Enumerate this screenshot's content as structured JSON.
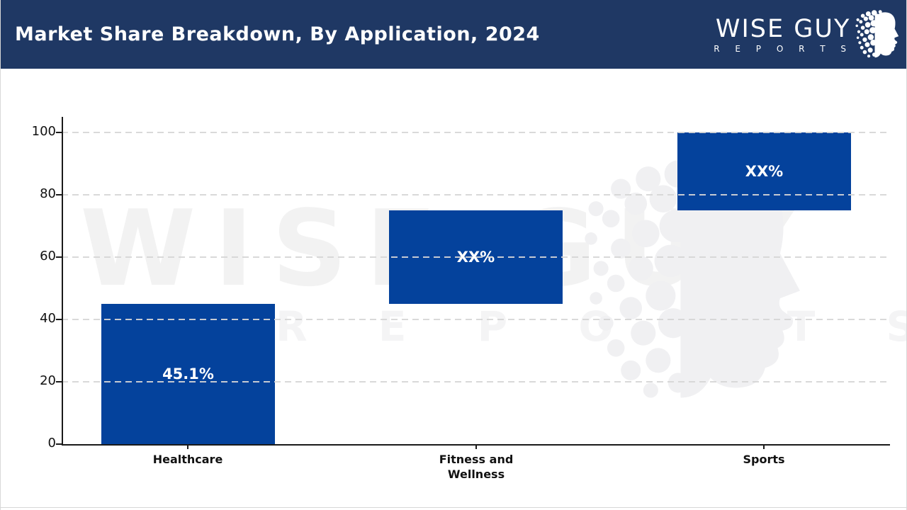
{
  "header": {
    "title": "Market Share Breakdown, By Application, 2024",
    "logo": {
      "line1": "WISE GUY",
      "line2": "R E P O R T S"
    },
    "background_color": "#1f3864"
  },
  "watermark": {
    "line1": "WISE GUY",
    "line2": "R E P O R T S"
  },
  "chart_data": {
    "type": "bar",
    "subtype": "waterfall",
    "title": "Market Share Breakdown, By Application, 2024",
    "categories": [
      "Healthcare",
      "Fitness and Wellness",
      "Sports"
    ],
    "bars": [
      {
        "category": "Healthcare",
        "start": 0,
        "end": 45.1,
        "label": "45.1%"
      },
      {
        "category": "Fitness and Wellness",
        "start": 45.1,
        "end": 75,
        "label": "XX%"
      },
      {
        "category": "Sports",
        "start": 75,
        "end": 100,
        "label": "XX%"
      }
    ],
    "yticks": [
      0,
      20,
      40,
      60,
      80,
      100
    ],
    "ylim": [
      0,
      105
    ],
    "xlabel": "",
    "ylabel": "",
    "grid": true,
    "grid_style": "dashed",
    "legend": false,
    "bar_color": "#04429c",
    "bar_label_color": "#ffffff",
    "grid_color": "#d9d9d9",
    "axis_color": "#1a1a1a",
    "tick_label_color": "#111111"
  }
}
